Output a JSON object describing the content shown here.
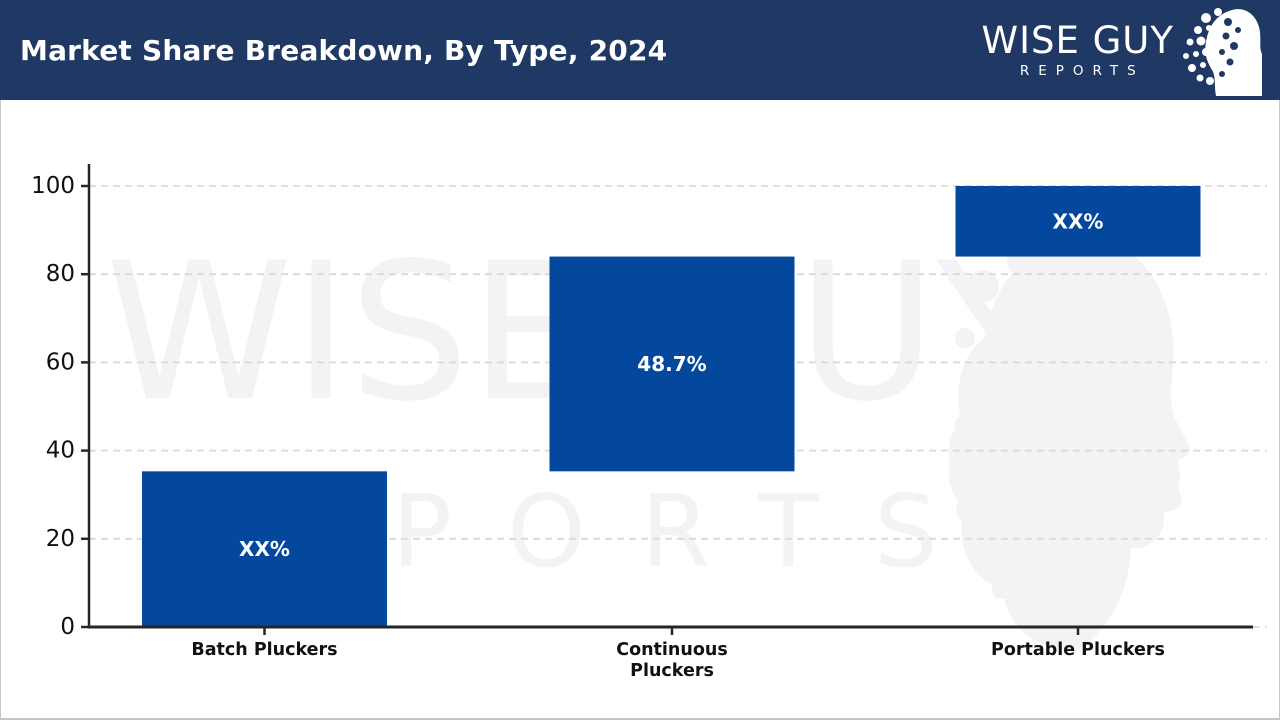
{
  "header": {
    "title": "Market Share Breakdown, By Type, 2024",
    "logo": {
      "line1": "WISE GUY",
      "line2": "REPORTS"
    }
  },
  "watermark": {
    "line1": "WISE GUY",
    "line2": "REPORTS"
  },
  "colors": {
    "header_bg": "#203864",
    "bar": "#04489d",
    "grid": "#d9d9d9",
    "axis": "#262626",
    "text": "#111111",
    "bar_label": "#ffffff",
    "watermark": "#f3f3f6",
    "frame_border": "#c8c8c8"
  },
  "chart_data": {
    "type": "bar",
    "variant": "floating-segment (waterfall-style market share breakdown)",
    "title": "Market Share Breakdown, By Type, 2024",
    "categories": [
      "Batch Pluckers",
      "Continuous Pluckers",
      "Portable Pluckers"
    ],
    "bars": [
      {
        "category_lines": [
          "Batch Pluckers"
        ],
        "start": 0,
        "end": 35.3,
        "value": 35.3,
        "label": "XX%"
      },
      {
        "category_lines": [
          "Continuous",
          "Pluckers"
        ],
        "start": 35.3,
        "end": 84,
        "value": 48.7,
        "label": "48.7%"
      },
      {
        "category_lines": [
          "Portable Pluckers"
        ],
        "start": 84,
        "end": 100,
        "value": 16,
        "label": "XX%"
      }
    ],
    "yticks": [
      0,
      20,
      40,
      60,
      80,
      100
    ],
    "ylim": [
      0,
      105
    ],
    "xlabel": "",
    "ylabel": "",
    "grid": "horizontal-dashed",
    "legend": "none"
  }
}
